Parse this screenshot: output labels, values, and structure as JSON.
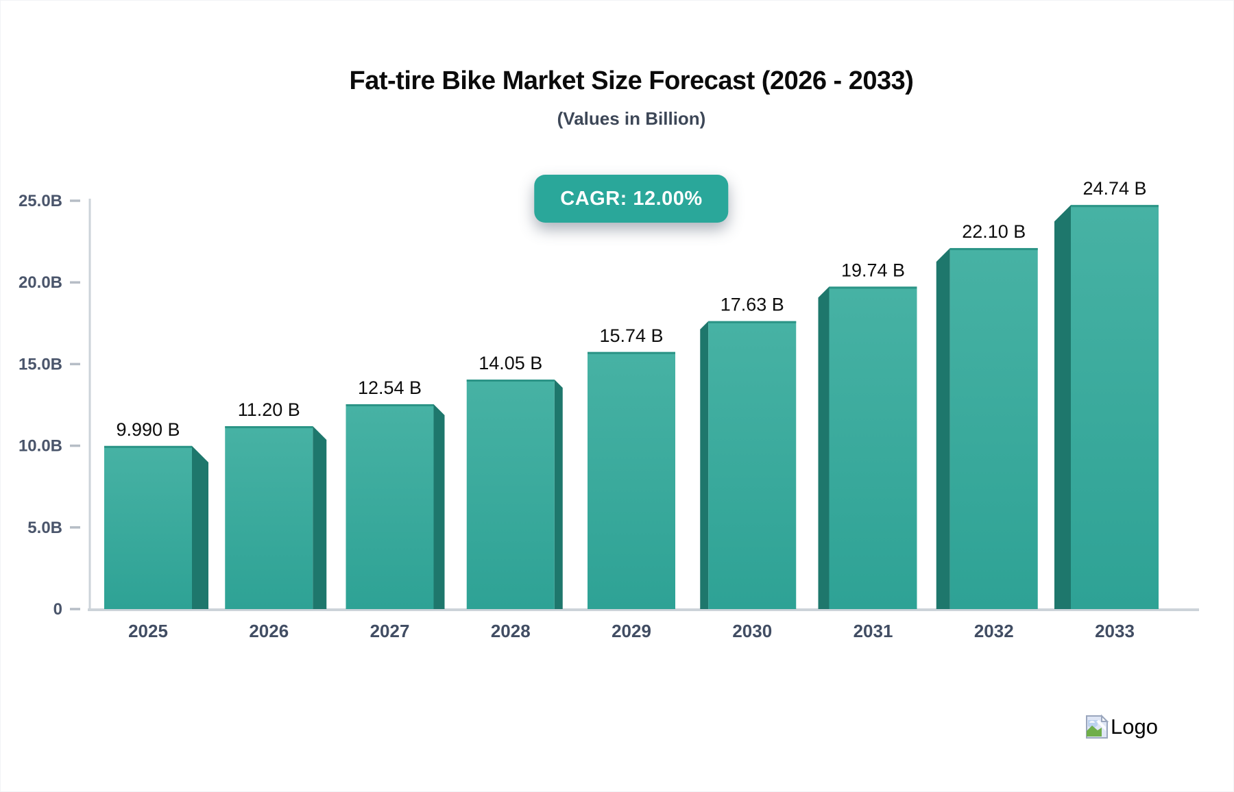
{
  "header": {
    "title": "Fat-tire Bike Market Size Forecast (2026 - 2033)",
    "subtitle": "(Values in Billion)"
  },
  "badge": {
    "label": "CAGR: 12.00%",
    "background": "#2aa79a",
    "text_color": "#ffffff"
  },
  "chart_data": {
    "type": "bar",
    "title": "Fat-tire Bike Market Size Forecast (2026 - 2033)",
    "subtitle": "(Values in Billion)",
    "categories": [
      "2025",
      "2026",
      "2027",
      "2028",
      "2029",
      "2030",
      "2031",
      "2032",
      "2033"
    ],
    "values": [
      9.99,
      11.2,
      12.54,
      14.05,
      15.74,
      17.63,
      19.74,
      22.1,
      24.74
    ],
    "value_labels": [
      "9.990 B",
      "11.20 B",
      "12.54 B",
      "14.05 B",
      "15.74 B",
      "17.63 B",
      "19.74 B",
      "22.10 B",
      "24.74 B"
    ],
    "xlabel": "",
    "ylabel": "",
    "ylim": [
      0,
      25
    ],
    "yticks": [
      {
        "value": 0,
        "label": "0"
      },
      {
        "value": 5,
        "label": "5.0B"
      },
      {
        "value": 10,
        "label": "10.0B"
      },
      {
        "value": 15,
        "label": "15.0B"
      },
      {
        "value": 20,
        "label": "20.0B"
      },
      {
        "value": 25,
        "label": "25.0B"
      }
    ],
    "grid": false,
    "legend": "none",
    "style": "3d-perspective-bars-center-vanishing-point",
    "colors": {
      "bar_face_top": "#47b2a4",
      "bar_face_bottom": "#2ea295",
      "bar_top_edge": "#2b9486",
      "bar_side": "#1e776c",
      "axis_line": "#ccd3d9",
      "tick_dash": "#b6bdc6",
      "ytick_label": "#4a556b",
      "xtick_label": "#414d63",
      "value_label": "#0d0d0d"
    }
  },
  "footer": {
    "logo_text": "Logo",
    "logo_icon": "broken-image-icon"
  }
}
